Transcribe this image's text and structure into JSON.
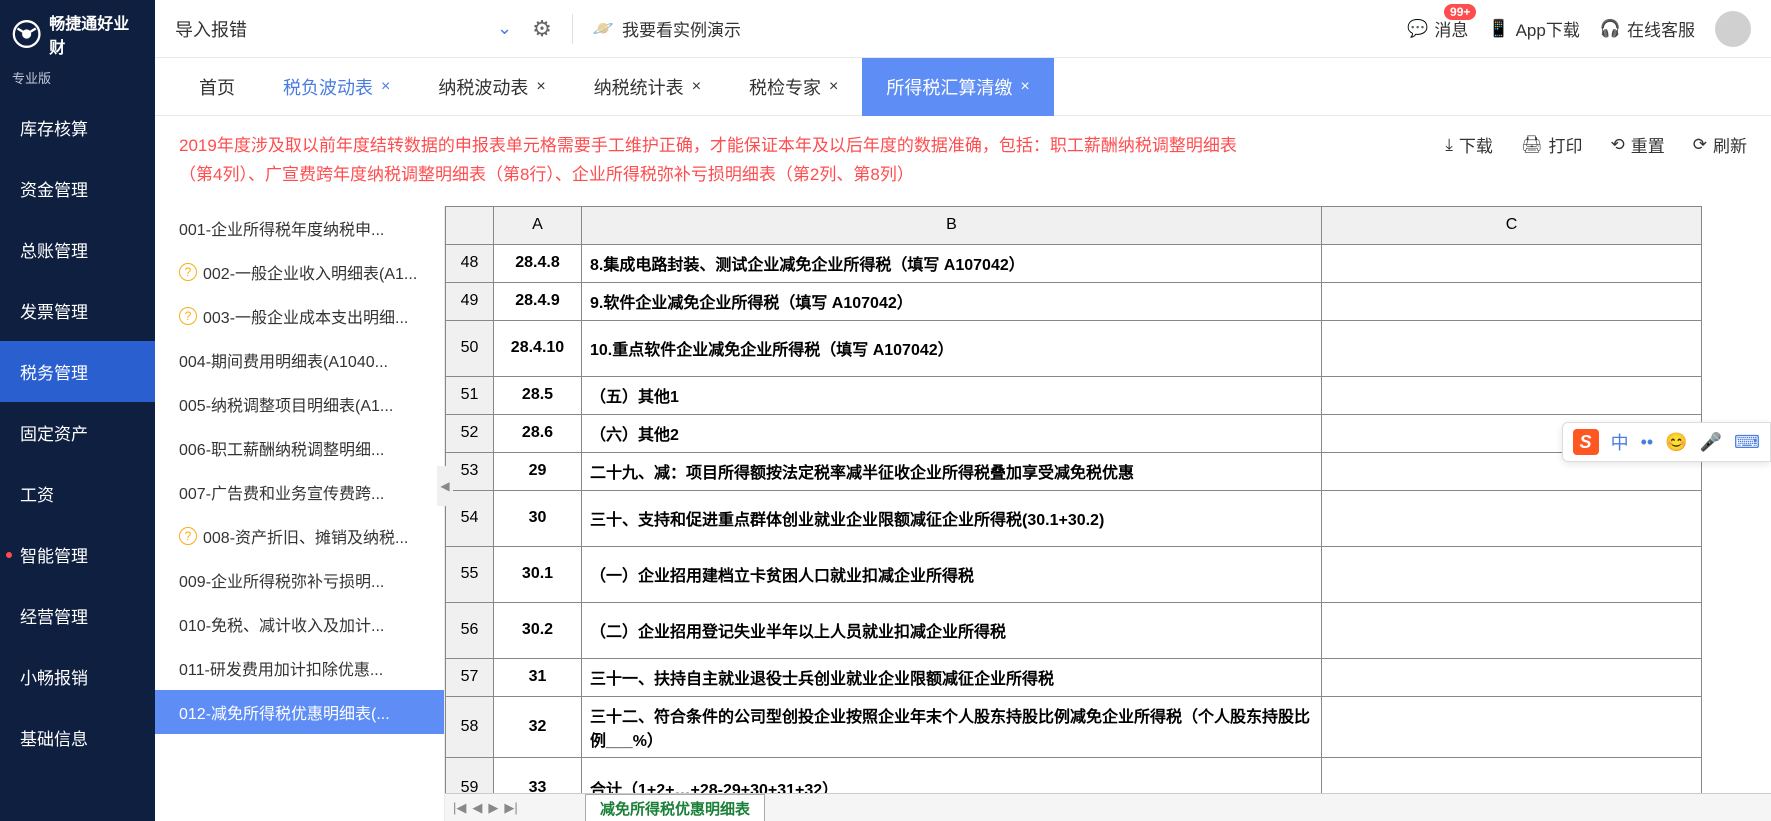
{
  "brand": {
    "name": "畅捷通好业财",
    "edition": "专业版"
  },
  "sidebar": {
    "items": [
      {
        "label": "库存核算",
        "active": false,
        "dot": false
      },
      {
        "label": "资金管理",
        "active": false,
        "dot": false
      },
      {
        "label": "总账管理",
        "active": false,
        "dot": false
      },
      {
        "label": "发票管理",
        "active": false,
        "dot": false
      },
      {
        "label": "税务管理",
        "active": true,
        "dot": false
      },
      {
        "label": "固定资产",
        "active": false,
        "dot": false
      },
      {
        "label": "工资",
        "active": false,
        "dot": false
      },
      {
        "label": "智能管理",
        "active": false,
        "dot": true
      },
      {
        "label": "经营管理",
        "active": false,
        "dot": false
      },
      {
        "label": "小畅报销",
        "active": false,
        "dot": false
      },
      {
        "label": "基础信息",
        "active": false,
        "dot": false
      }
    ]
  },
  "topbar": {
    "dropdown_label": "导入报错",
    "demo_label": "我要看实例演示",
    "message_label": "消息",
    "message_badge": "99+",
    "app_label": "App下载",
    "service_label": "在线客服"
  },
  "tabs": [
    {
      "label": "首页",
      "closable": false,
      "state": "home"
    },
    {
      "label": "税负波动表",
      "closable": true,
      "state": "sel"
    },
    {
      "label": "纳税波动表",
      "closable": true,
      "state": ""
    },
    {
      "label": "纳税统计表",
      "closable": true,
      "state": ""
    },
    {
      "label": "税检专家",
      "closable": true,
      "state": ""
    },
    {
      "label": "所得税汇算清缴",
      "closable": true,
      "state": "active"
    }
  ],
  "notice": "2019年度涉及取以前年度结转数据的申报表单元格需要手工维护正确，才能保证本年及以后年度的数据准确，包括：职工薪酬纳税调整明细表（第4列）、广宣费跨年度纳税调整明细表（第8行）、企业所得税弥补亏损明细表（第2列、第8列）",
  "toolbar": {
    "download": "下载",
    "print": "打印",
    "reset": "重置",
    "refresh": "刷新"
  },
  "tree": [
    {
      "label": "001-企业所得税年度纳税申...",
      "warn": false,
      "active": false
    },
    {
      "label": "002-一般企业收入明细表(A1...",
      "warn": true,
      "active": false
    },
    {
      "label": "003-一般企业成本支出明细...",
      "warn": true,
      "active": false
    },
    {
      "label": "004-期间费用明细表(A1040...",
      "warn": false,
      "active": false
    },
    {
      "label": "005-纳税调整项目明细表(A1...",
      "warn": false,
      "active": false
    },
    {
      "label": "006-职工薪酬纳税调整明细...",
      "warn": false,
      "active": false
    },
    {
      "label": "007-广告费和业务宣传费跨...",
      "warn": false,
      "active": false
    },
    {
      "label": "008-资产折旧、摊销及纳税...",
      "warn": true,
      "active": false
    },
    {
      "label": "009-企业所得税弥补亏损明...",
      "warn": false,
      "active": false
    },
    {
      "label": "010-免税、减计收入及加计...",
      "warn": false,
      "active": false
    },
    {
      "label": "011-研发费用加计扣除优惠...",
      "warn": false,
      "active": false
    },
    {
      "label": "012-减免所得税优惠明细表(...",
      "warn": false,
      "active": true
    }
  ],
  "sheet": {
    "columns": [
      "A",
      "B",
      "C"
    ],
    "col_widths": {
      "A": 88,
      "B": 740,
      "C": 380
    },
    "rows": [
      {
        "n": "48",
        "a": "28.4.8",
        "b": "        8.集成电路封装、测试企业减免企业所得税（填写 A107042）",
        "h": ""
      },
      {
        "n": "49",
        "a": "28.4.9",
        "b": "        9.软件企业减免企业所得税（填写 A107042）",
        "h": ""
      },
      {
        "n": "50",
        "a": "28.4.10",
        "b": "        10.重点软件企业减免企业所得税（填写 A107042）",
        "h": "tall"
      },
      {
        "n": "51",
        "a": "28.5",
        "b": "   （五）其他1",
        "h": ""
      },
      {
        "n": "52",
        "a": "28.6",
        "b": "   （六）其他2",
        "h": ""
      },
      {
        "n": "53",
        "a": "29",
        "b": "二十九、减：项目所得额按法定税率减半征收企业所得税叠加享受减免税优惠",
        "h": ""
      },
      {
        "n": "54",
        "a": "30",
        "b": "三十、支持和促进重点群体创业就业企业限额减征企业所得税(30.1+30.2)",
        "h": "tall"
      },
      {
        "n": "55",
        "a": "30.1",
        "b": "   （一）企业招用建档立卡贫困人口就业扣减企业所得税",
        "h": "tall"
      },
      {
        "n": "56",
        "a": "30.2",
        "b": "   （二）企业招用登记失业半年以上人员就业扣减企业所得税",
        "h": "tall"
      },
      {
        "n": "57",
        "a": "31",
        "b": "三十一、扶持自主就业退役士兵创业就业企业限额减征企业所得税",
        "h": ""
      },
      {
        "n": "58",
        "a": "32",
        "b": "三十二、符合条件的公司型创投企业按照企业年末个人股东持股比例减免企业所得税（个人股东持股比例___%）",
        "h": "tall"
      },
      {
        "n": "59",
        "a": "33",
        "b": "合计（1+2+…+28-29+30+31+32）",
        "h": "xtall"
      }
    ],
    "tab_label": "减免所得税优惠明细表"
  },
  "ime": {
    "lang": "中"
  }
}
